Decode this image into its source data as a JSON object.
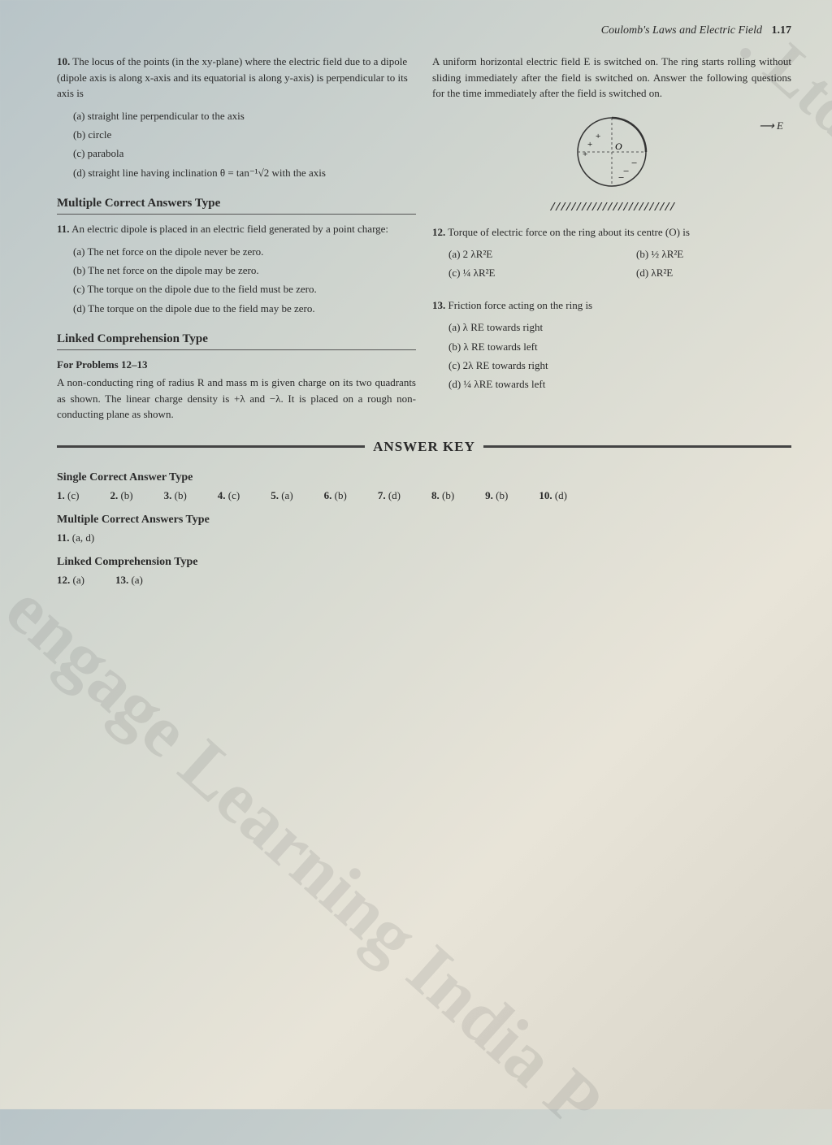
{
  "header": {
    "chapter": "Coulomb's Laws and Electric Field",
    "page": "1.17"
  },
  "left_col": {
    "q10": {
      "num": "10.",
      "text": "The locus of the points (in the xy-plane) where the electric field due to a dipole (dipole axis is along x-axis and its equatorial is along y-axis) is perpendicular to its axis is",
      "opts": {
        "a": "(a) straight line perpendicular to the axis",
        "b": "(b) circle",
        "c": "(c) parabola",
        "d": "(d) straight line having inclination θ = tan⁻¹√2 with the axis"
      }
    },
    "sec_multi": "Multiple Correct Answers Type",
    "q11": {
      "num": "11.",
      "text": "An electric dipole is placed in an electric field generated by a point charge:",
      "opts": {
        "a": "(a) The net force on the dipole never be zero.",
        "b": "(b) The net force on the dipole may be zero.",
        "c": "(c) The torque on the dipole due to the field must be zero.",
        "d": "(d) The torque on the dipole due to the field may be zero."
      }
    },
    "sec_linked": "Linked Comprehension Type",
    "context_title": "For Problems 12–13",
    "context_text": "A non-conducting ring of radius R and mass m is given charge on its two quadrants as shown. The linear charge density is +λ and −λ. It is placed on a rough non-conducting plane as shown."
  },
  "right_col": {
    "intro": "A uniform horizontal electric field E is switched on. The ring starts rolling without sliding immediately after the field is switched on. Answer the following questions for the time immediately after the field is switched on.",
    "e_label": "E",
    "o_label": "O",
    "q12": {
      "num": "12.",
      "text": "Torque of electric force on the ring about its centre (O) is",
      "opts": {
        "a": "(a) 2 λR²E",
        "b": "(b) ½ λR²E",
        "c": "(c) ¼ λR²E",
        "d": "(d) λR²E"
      }
    },
    "q13": {
      "num": "13.",
      "text": "Friction force acting on the ring is",
      "opts": {
        "a": "(a) λ RE towards right",
        "b": "(b) λ RE towards left",
        "c": "(c) 2λ RE towards right",
        "d": "(d) ¼ λRE towards left"
      }
    }
  },
  "answer_key": {
    "label": "ANSWER KEY",
    "single_title": "Single Correct Answer Type",
    "single": [
      {
        "n": "1.",
        "a": "(c)"
      },
      {
        "n": "2.",
        "a": "(b)"
      },
      {
        "n": "3.",
        "a": "(b)"
      },
      {
        "n": "4.",
        "a": "(c)"
      },
      {
        "n": "5.",
        "a": "(a)"
      },
      {
        "n": "6.",
        "a": "(b)"
      },
      {
        "n": "7.",
        "a": "(d)"
      },
      {
        "n": "8.",
        "a": "(b)"
      },
      {
        "n": "9.",
        "a": "(b)"
      },
      {
        "n": "10.",
        "a": "(d)"
      }
    ],
    "multi_title": "Multiple Correct Answers Type",
    "multi": [
      {
        "n": "11.",
        "a": "(a, d)"
      }
    ],
    "linked_title": "Linked Comprehension Type",
    "linked": [
      {
        "n": "12.",
        "a": "(a)"
      },
      {
        "n": "13.",
        "a": "(a)"
      }
    ]
  },
  "colors": {
    "text": "#2a2a2a",
    "watermark": "rgba(100,100,100,0.15)",
    "bar": "#444"
  }
}
